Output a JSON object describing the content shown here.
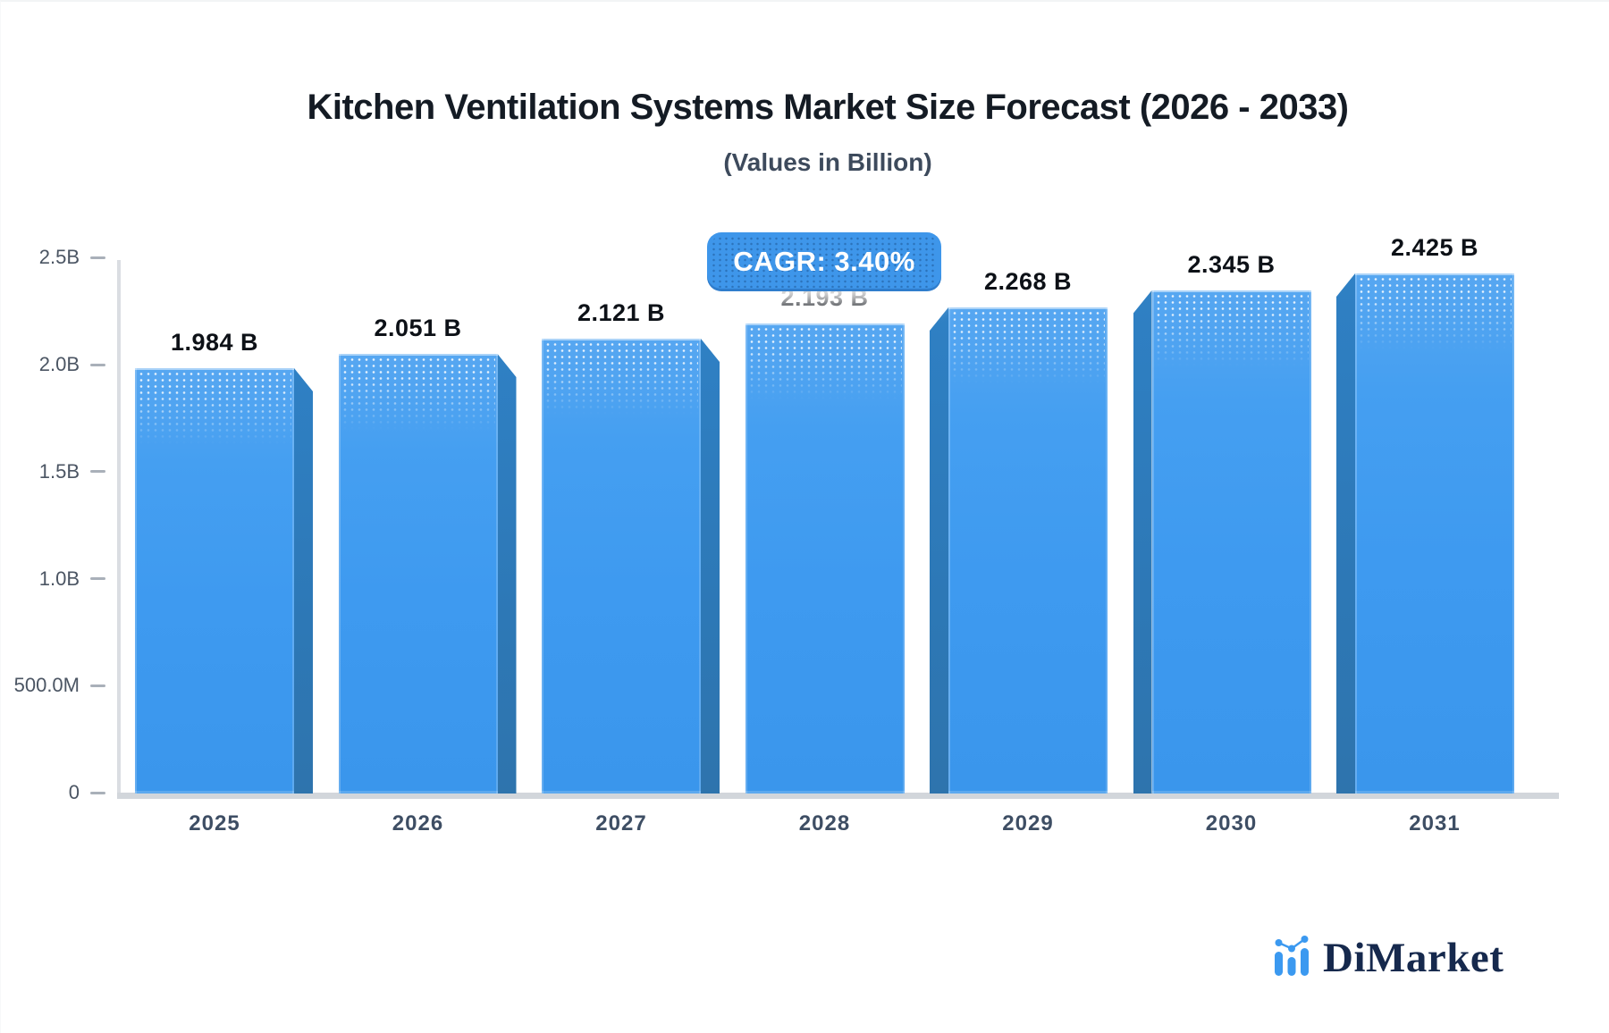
{
  "header": {
    "title": "Kitchen Ventilation Systems Market Size Forecast (2026 - 2033)",
    "subtitle": "(Values in Billion)"
  },
  "cagr_badge": {
    "label": "CAGR: 3.40%"
  },
  "brand": {
    "name": "DiMarket",
    "icon": "mini-bar-line-chart-icon"
  },
  "chart_data": {
    "type": "bar",
    "title": "Kitchen Ventilation Systems Market Size Forecast (2026 - 2033)",
    "subtitle": "(Values in Billion)",
    "categories": [
      "2025",
      "2026",
      "2027",
      "2028",
      "2029",
      "2030",
      "2031"
    ],
    "values": [
      1.984,
      2.051,
      2.121,
      2.193,
      2.268,
      2.345,
      2.425
    ],
    "value_labels": [
      "1.984 B",
      "2.051 B",
      "2.121 B",
      "2.193 B",
      "2.268 B",
      "2.345 B",
      "2.425 B"
    ],
    "y_ticks": [
      {
        "label": "0",
        "value": 0
      },
      {
        "label": "500.0M",
        "value": 0.5
      },
      {
        "label": "1.0B",
        "value": 1.0
      },
      {
        "label": "1.5B",
        "value": 1.5
      },
      {
        "label": "2.0B",
        "value": 2.0
      },
      {
        "label": "2.5B",
        "value": 2.5
      }
    ],
    "ylim": [
      0,
      2.5
    ],
    "xlabel": "",
    "ylabel": "",
    "grid": false,
    "legend": null,
    "annotations": [
      {
        "text": "CAGR: 3.40%",
        "position": "above-2028-bar"
      }
    ],
    "colors": {
      "bar_face": "#3e9af0",
      "bar_face_light": "#57a7f1",
      "bar_side": "#2e7ab8",
      "badge_fill": "#3e96ea",
      "axis_line": "#dadde2",
      "baseline": "#d2d6db",
      "tick_label": "#4b5563",
      "year_label": "#3e4e64",
      "value_label": "#0d1117",
      "title": "#141b24",
      "subtitle": "#3d4a5c",
      "brand_navy": "#16294d",
      "brand_blue": "#3b99f0"
    }
  }
}
